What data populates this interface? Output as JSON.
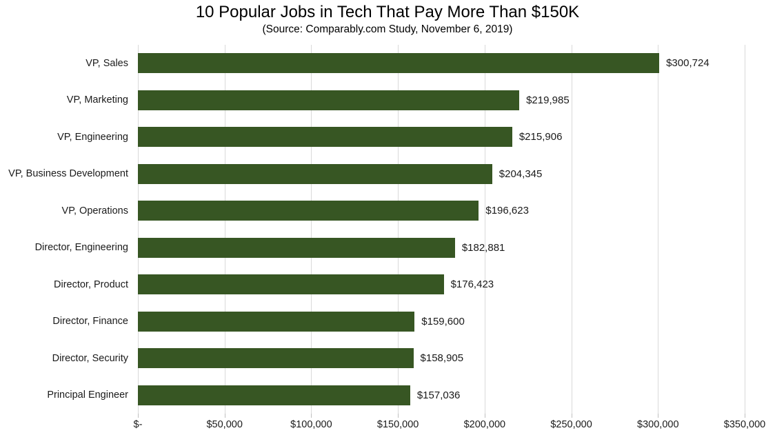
{
  "title": "10 Popular Jobs in Tech That Pay More Than $150K",
  "subtitle": "(Source: Comparably.com Study, November 6, 2019)",
  "colors": {
    "bar": "#375623",
    "gridline": "#d9d9d9",
    "tick": "#bfbfbf",
    "text": "#1a1a1a",
    "background": "#ffffff"
  },
  "chart_data": {
    "type": "bar",
    "orientation": "horizontal",
    "title": "10 Popular Jobs in Tech That Pay More Than $150K",
    "subtitle": "(Source: Comparably.com Study, November 6, 2019)",
    "categories": [
      "VP, Sales",
      "VP, Marketing",
      "VP, Engineering",
      "VP, Business Development",
      "VP, Operations",
      "Director, Engineering",
      "Director, Product",
      "Director, Finance",
      "Director, Security",
      "Principal Engineer"
    ],
    "values": [
      300724,
      219985,
      215906,
      204345,
      196623,
      182881,
      176423,
      159600,
      158905,
      157036
    ],
    "value_labels": [
      "$300,724",
      "$219,985",
      "$215,906",
      "$204,345",
      "$196,623",
      "$182,881",
      "$176,423",
      "$159,600",
      "$158,905",
      "$157,036"
    ],
    "xlabel": "",
    "ylabel": "",
    "xlim": [
      0,
      350000
    ],
    "x_tick_interval": 50000,
    "x_tick_labels": [
      "$-",
      "$50,000",
      "$100,000",
      "$150,000",
      "$200,000",
      "$250,000",
      "$300,000",
      "$350,000"
    ],
    "grid": "vertical",
    "legend": "none",
    "bar_color": "#375623"
  }
}
